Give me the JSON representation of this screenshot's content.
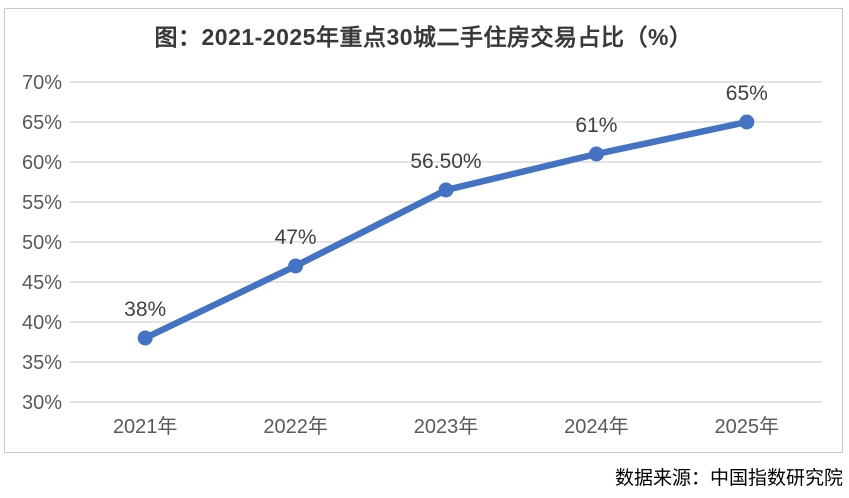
{
  "chart_data": {
    "type": "line",
    "title": "图：2021-2025年重点30城二手住房交易占比（%）",
    "source": "数据来源：中国指数研究院",
    "categories": [
      "2021年",
      "2022年",
      "2023年",
      "2024年",
      "2025年"
    ],
    "series": [
      {
        "name": "重点30城二手住房交易占比",
        "values": [
          38,
          47,
          56.5,
          61,
          65
        ],
        "data_labels": [
          "38%",
          "47%",
          "56.50%",
          "61%",
          "65%"
        ]
      }
    ],
    "xlabel": "",
    "ylabel": "",
    "ylim": [
      30,
      70
    ],
    "ytick_step": 5,
    "ytick_labels": [
      "30%",
      "35%",
      "40%",
      "45%",
      "50%",
      "55%",
      "60%",
      "65%",
      "70%"
    ],
    "grid": true,
    "legend": false,
    "marker": "circle",
    "colors": {
      "line": "#4472C4",
      "marker": "#4472C4",
      "grid": "#DCDCDC",
      "axis_text": "#595959",
      "title_text": "#3B3838",
      "label_text": "#404040",
      "border": "#C9C9C9",
      "source_text": "#000000"
    }
  }
}
